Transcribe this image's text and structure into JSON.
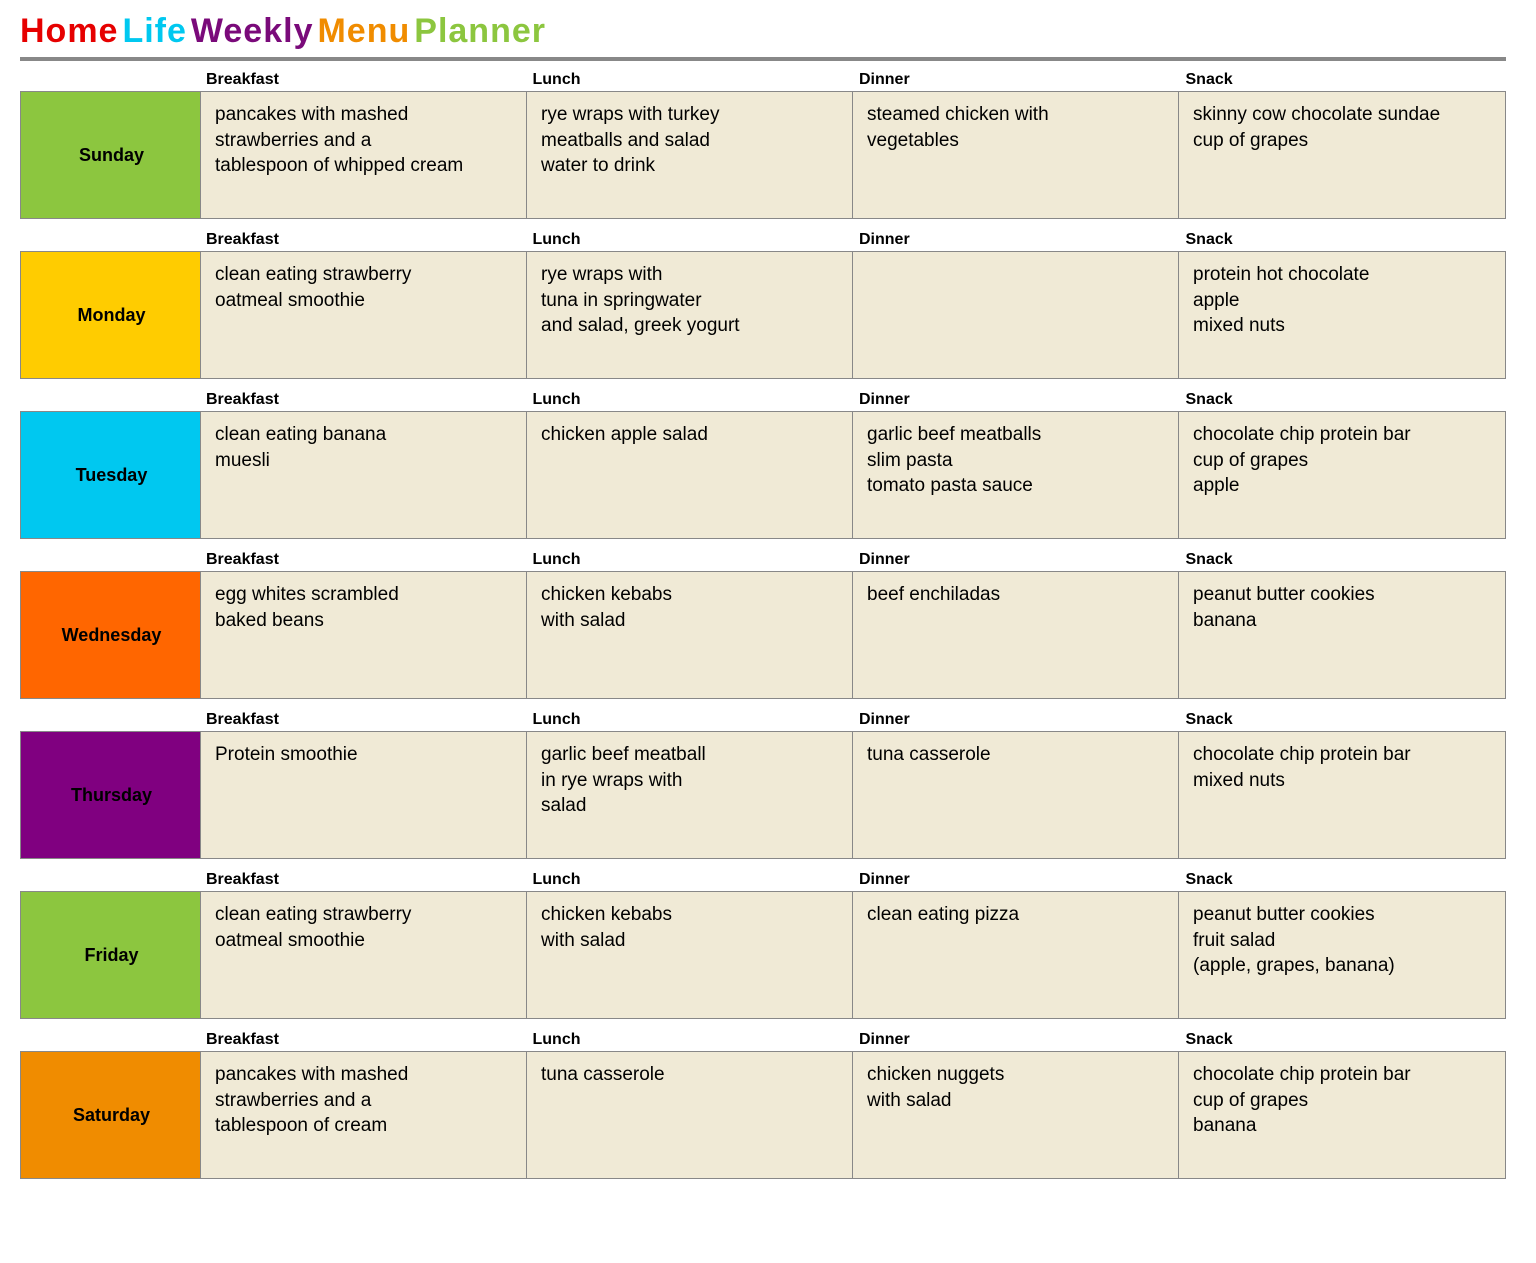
{
  "title": {
    "words": [
      {
        "text": "Home",
        "color": "#e60000"
      },
      {
        "text": "Life",
        "color": "#00c8f0"
      },
      {
        "text": "Weekly",
        "color": "#7a0a7a"
      },
      {
        "text": "Menu",
        "color": "#f08c00"
      },
      {
        "text": "Planner",
        "color": "#8cc63f"
      }
    ]
  },
  "mealHeaders": [
    "Breakfast",
    "Lunch",
    "Dinner",
    "Snack"
  ],
  "cellBackground": "#f0ead6",
  "days": [
    {
      "name": "Sunday",
      "color": "#8cc63f",
      "breakfast": "pancakes with mashed\nstrawberries and a\ntablespoon of whipped cream",
      "lunch": "rye wraps with turkey\nmeatballs and salad\nwater to drink",
      "dinner": "steamed chicken with\nvegetables",
      "snack": "skinny cow chocolate sundae\ncup of grapes"
    },
    {
      "name": "Monday",
      "color": "#ffcc00",
      "breakfast": "clean eating strawberry\noatmeal smoothie",
      "lunch": "rye wraps with\ntuna in springwater\nand salad, greek yogurt",
      "dinner": "",
      "snack": "protein hot chocolate\napple\nmixed nuts"
    },
    {
      "name": "Tuesday",
      "color": "#00c8f0",
      "breakfast": "clean eating banana\nmuesli",
      "lunch": "chicken apple salad",
      "dinner": "garlic beef meatballs\nslim pasta\ntomato pasta sauce",
      "snack": "chocolate chip protein bar\ncup of grapes\napple"
    },
    {
      "name": "Wednesday",
      "color": "#ff6600",
      "breakfast": "egg whites scrambled\nbaked beans",
      "lunch": "chicken kebabs\nwith salad",
      "dinner": "beef enchiladas",
      "snack": "peanut butter cookies\nbanana"
    },
    {
      "name": "Thursday",
      "color": "#800080",
      "breakfast": "Protein smoothie",
      "lunch": "garlic beef meatball\nin rye wraps with\nsalad",
      "dinner": "tuna casserole",
      "snack": "chocolate chip protein bar\nmixed nuts"
    },
    {
      "name": "Friday",
      "color": "#8cc63f",
      "breakfast": "clean eating strawberry\noatmeal smoothie",
      "lunch": "chicken kebabs\nwith salad",
      "dinner": "clean eating pizza",
      "snack": "peanut butter cookies\nfruit salad\n(apple, grapes, banana)"
    },
    {
      "name": "Saturday",
      "color": "#f08c00",
      "breakfast": "pancakes with mashed\nstrawberries and a\ntablespoon of cream",
      "lunch": "tuna casserole",
      "dinner": "chicken nuggets\nwith salad",
      "snack": "chocolate chip protein bar\ncup of grapes\nbanana"
    }
  ]
}
